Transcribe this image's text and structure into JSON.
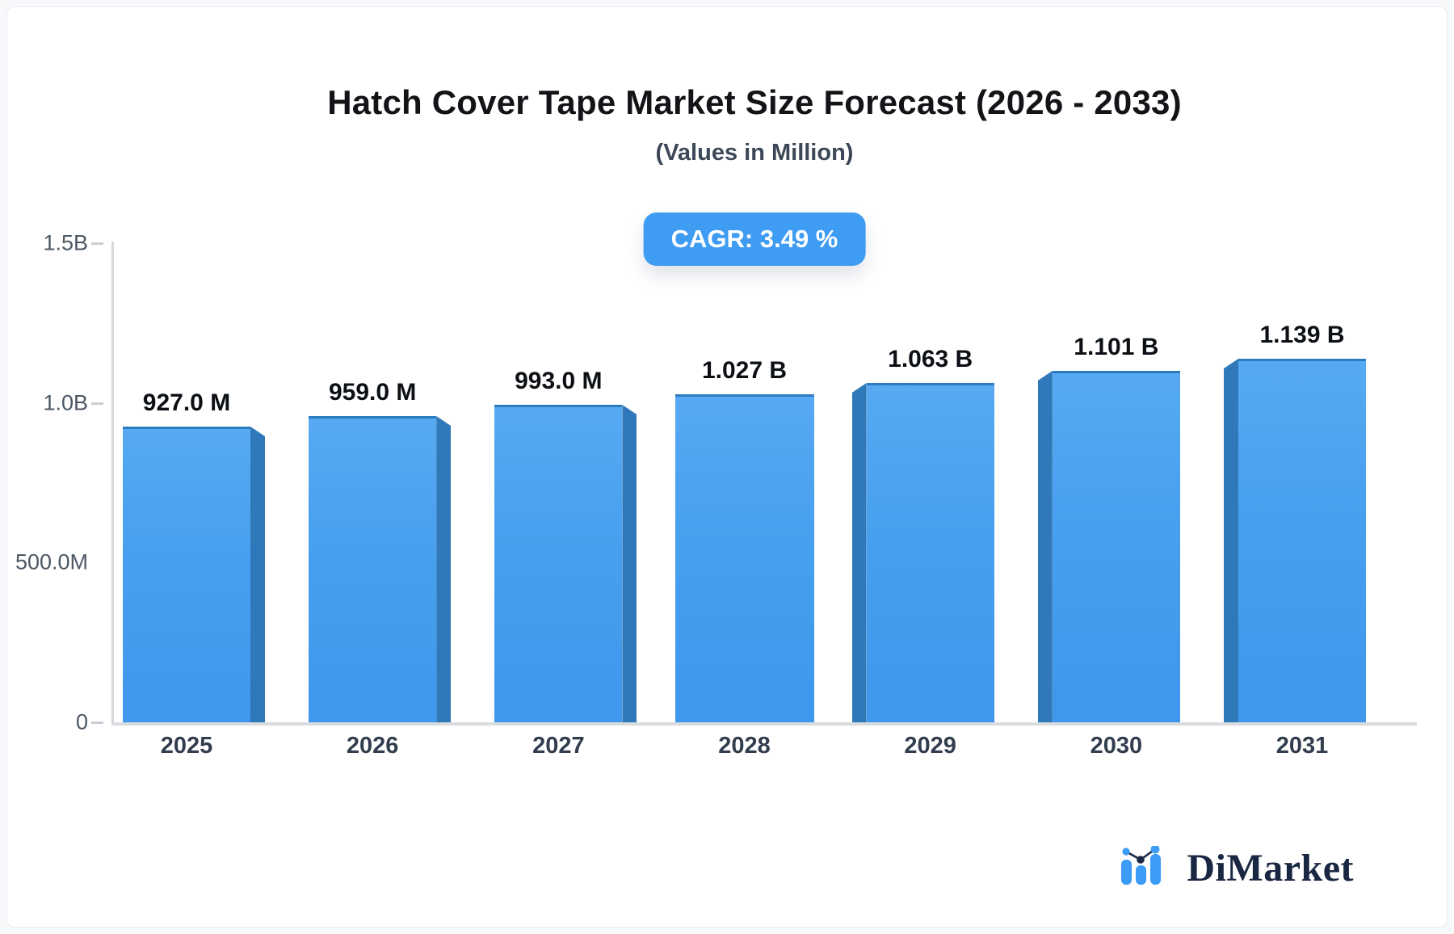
{
  "header": {
    "title": "Hatch Cover Tape Market Size Forecast (2026 - 2033)",
    "subtitle": "(Values in Million)",
    "cagr_badge": "CAGR: 3.49 %"
  },
  "chart_data": {
    "type": "bar",
    "title": "Hatch Cover Tape Market Size Forecast (2026 - 2033)",
    "subtitle": "(Values in Million)",
    "cagr_percent": 3.49,
    "categories": [
      "2025",
      "2026",
      "2027",
      "2028",
      "2029",
      "2030",
      "2031"
    ],
    "values_millions": [
      927,
      959,
      993,
      1027,
      1063,
      1101,
      1139
    ],
    "bar_labels": [
      "927.0 M",
      "959.0 M",
      "993.0 M",
      "1.027 B",
      "1.063 B",
      "1.101 B",
      "1.139 B"
    ],
    "y_axis": {
      "range_millions": [
        0,
        1500
      ],
      "ticks": [
        {
          "label": "1.5B",
          "value_millions": 1500,
          "dash": true
        },
        {
          "label": "1.0B",
          "value_millions": 1000,
          "dash": true
        },
        {
          "label": "500.0M",
          "value_millions": 500,
          "dash": false
        },
        {
          "label": "0",
          "value_millions": 0,
          "dash": true
        }
      ]
    },
    "grid": false,
    "legend": "none",
    "style": "3d-beveled bars, side shading faces away from center"
  },
  "colors": {
    "bar_face_top": "#57a9f2",
    "bar_face_bottom": "#3f97ee",
    "bar_side_shade": "#2f79ba",
    "bar_top_edge": "#2e7cc0",
    "badge_background": "#3f9cf3",
    "badge_text": "#ffffff",
    "axis_gray": "#d6d9dd",
    "title_text": "#121417",
    "subtitle_text": "#3c4857",
    "logo_navy": "#1a2742",
    "logo_blue": "#3b9bf5"
  },
  "logo": {
    "text": "DiMarket"
  }
}
